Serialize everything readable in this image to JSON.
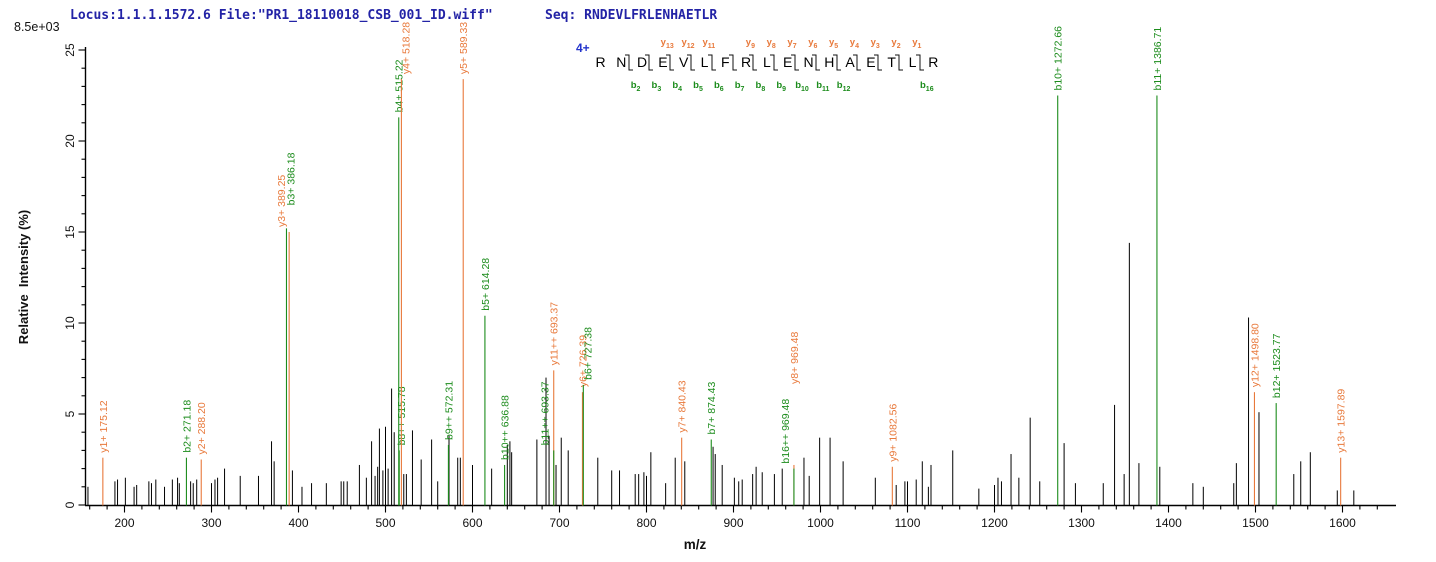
{
  "header": {
    "locus_file": "Locus:1.1.1.1572.6 File:\"PR1_18110018_CSB_001_ID.wiff\"",
    "seq_label": "Seq:",
    "seq_value": "RNDEVLFRLENHAETLR"
  },
  "axes": {
    "y_title": "Relative  Intensity (%)",
    "base_peak_intensity": "8.5e+03",
    "x_title": "m/z",
    "y_ticks_major": [
      0,
      5,
      10,
      15,
      20,
      25
    ],
    "x_ticks_major": [
      200,
      300,
      400,
      500,
      600,
      700,
      800,
      900,
      1000,
      1100,
      1200,
      1300,
      1400,
      1500,
      1600
    ],
    "x_minor_step": 20,
    "y_minor_step": 1,
    "x_range": [
      154,
      1660
    ],
    "y_range": [
      0,
      25
    ]
  },
  "sequence": {
    "charge": "4+",
    "residues": [
      "R",
      "N",
      "D",
      "E",
      "V",
      "L",
      "F",
      "R",
      "L",
      "E",
      "N",
      "H",
      "A",
      "E",
      "T",
      "L",
      "R"
    ],
    "boundaries": [
      {
        "after": 1,
        "b": "b2"
      },
      {
        "after": 2,
        "b": "b3"
      },
      {
        "after": 3,
        "y": "y13",
        "b": "b4"
      },
      {
        "after": 4,
        "y": "y12",
        "b": "b5"
      },
      {
        "after": 5,
        "y": "y11",
        "b": "b6"
      },
      {
        "after": 6,
        "b": "b7"
      },
      {
        "after": 7,
        "y": "y9",
        "b": "b8"
      },
      {
        "after": 8,
        "y": "y8",
        "b": "b9"
      },
      {
        "after": 9,
        "y": "y7",
        "b": "b10"
      },
      {
        "after": 10,
        "y": "y6",
        "b": "b11"
      },
      {
        "after": 11,
        "y": "y5",
        "b": "b12"
      },
      {
        "after": 12,
        "y": "y4"
      },
      {
        "after": 13,
        "y": "y3"
      },
      {
        "after": 14,
        "y": "y2"
      },
      {
        "after": 15,
        "y": "y1",
        "b": "b16"
      }
    ]
  },
  "chart_data": {
    "type": "bar",
    "subtype": "ms2-fragmentation-spectrum",
    "title": "",
    "xlabel": "m/z",
    "ylabel": "Relative Intensity (%)",
    "xlim": [
      154,
      1660
    ],
    "ylim": [
      0,
      25
    ],
    "base_peak_intensity": "8.5e+03",
    "labeled_peaks": [
      {
        "label": "y1+ 175.12",
        "ion": "y1+",
        "mz": 175.12,
        "pct": 2.6,
        "series": "y"
      },
      {
        "label": "b2+ 271.18",
        "ion": "b2+",
        "mz": 271.18,
        "pct": 2.6,
        "series": "b"
      },
      {
        "label": "y2+ 288.20",
        "ion": "y2+",
        "mz": 288.2,
        "pct": 2.5,
        "series": "y"
      },
      {
        "label": "b3+ 386.18",
        "ion": "b3+",
        "mz": 386.18,
        "pct": 15.2,
        "series": "b",
        "label_dx": 8,
        "label_raise": 18
      },
      {
        "label": "y3+ 389.25",
        "ion": "y3+",
        "mz": 389.25,
        "pct": 15.0,
        "series": "y",
        "label_dx": -4
      },
      {
        "label": "b4+ 515.22",
        "ion": "b4+",
        "mz": 515.22,
        "pct": 21.3,
        "series": "b"
      },
      {
        "label": "b8++ 515.78",
        "ion": "b8++",
        "mz": 515.78,
        "pct": 3.0,
        "series": "b",
        "label_dx": 6
      },
      {
        "label": "y4+ 518.28",
        "ion": "y4+",
        "mz": 518.28,
        "pct": 23.4,
        "series": "y",
        "label_dx": 8
      },
      {
        "label": "b9++ 572.31",
        "ion": "b9++",
        "mz": 572.31,
        "pct": 3.3,
        "series": "b"
      },
      {
        "label": "y5+ 589.33",
        "ion": "y5+",
        "mz": 589.33,
        "pct": 23.4,
        "series": "y"
      },
      {
        "label": "b5+ 614.28",
        "ion": "b5+",
        "mz": 614.28,
        "pct": 10.4,
        "series": "b"
      },
      {
        "label": "b10++ 636.88",
        "ion": "b10++",
        "mz": 636.88,
        "pct": 2.2,
        "series": "b"
      },
      {
        "label": "y11++ 693.37",
        "ion": "y11++",
        "mz": 693.37,
        "pct": 7.4,
        "series": "y"
      },
      {
        "label": "b11++ 693.37",
        "ion": "b11++",
        "mz": 693.37,
        "pct": 3.0,
        "series": "b",
        "label_dx": -5
      },
      {
        "label": "y6+ 726.39",
        "ion": "y6+",
        "mz": 726.39,
        "pct": 6.2,
        "series": "y"
      },
      {
        "label": "b6+ 727.38",
        "ion": "b6+",
        "mz": 727.38,
        "pct": 6.6,
        "series": "b",
        "label_dx": 8
      },
      {
        "label": "y7+ 840.43",
        "ion": "y7+",
        "mz": 840.43,
        "pct": 3.7,
        "series": "y"
      },
      {
        "label": "b7+ 874.43",
        "ion": "b7+",
        "mz": 874.43,
        "pct": 3.6,
        "series": "b"
      },
      {
        "label": "y8+ 969.48",
        "ion": "y8+",
        "mz": 969.48,
        "pct": 2.2,
        "series": "y",
        "label_raise": 76
      },
      {
        "label": "b16++ 969.48",
        "ion": "b16++",
        "mz": 969.48,
        "pct": 2.0,
        "series": "b",
        "label_dx": -5
      },
      {
        "label": "y9+ 1082.56",
        "ion": "y9+",
        "mz": 1082.56,
        "pct": 2.1,
        "series": "y"
      },
      {
        "label": "b10+ 1272.66",
        "ion": "b10+",
        "mz": 1272.66,
        "pct": 22.5,
        "series": "b"
      },
      {
        "label": "b11+ 1386.71",
        "ion": "b11+",
        "mz": 1386.71,
        "pct": 22.5,
        "series": "b"
      },
      {
        "label": "y12+ 1498.80",
        "ion": "y12+",
        "mz": 1498.8,
        "pct": 6.2,
        "series": "y"
      },
      {
        "label": "b12+ 1523.77",
        "ion": "b12+",
        "mz": 1523.77,
        "pct": 5.6,
        "series": "b"
      },
      {
        "label": "y13+ 1597.89",
        "ion": "y13+",
        "mz": 1597.89,
        "pct": 2.6,
        "series": "y"
      }
    ],
    "unlabeled_peaks": [
      [
        158,
        1.0
      ],
      [
        189,
        1.3
      ],
      [
        192,
        1.4
      ],
      [
        201,
        1.5
      ],
      [
        211,
        1.0
      ],
      [
        214,
        1.1
      ],
      [
        228,
        1.3
      ],
      [
        231,
        1.2
      ],
      [
        236,
        1.4
      ],
      [
        246,
        1.0
      ],
      [
        255,
        1.4
      ],
      [
        261,
        1.5
      ],
      [
        263,
        1.2
      ],
      [
        276,
        1.3
      ],
      [
        279,
        1.2
      ],
      [
        283,
        1.4
      ],
      [
        300,
        1.2
      ],
      [
        304,
        1.4
      ],
      [
        307,
        1.5
      ],
      [
        315,
        2.0
      ],
      [
        333,
        1.6
      ],
      [
        354,
        1.6
      ],
      [
        369,
        3.5
      ],
      [
        372,
        2.4
      ],
      [
        393,
        1.9
      ],
      [
        404,
        1.0
      ],
      [
        415,
        1.2
      ],
      [
        432,
        1.2
      ],
      [
        449,
        1.3
      ],
      [
        452,
        1.3
      ],
      [
        456,
        1.3
      ],
      [
        470,
        2.2
      ],
      [
        478,
        1.5
      ],
      [
        484,
        3.5
      ],
      [
        488,
        1.6
      ],
      [
        491,
        2.1
      ],
      [
        493,
        4.2
      ],
      [
        497,
        1.9
      ],
      [
        500,
        4.3
      ],
      [
        503,
        2.0
      ],
      [
        507,
        6.4
      ],
      [
        510,
        4.0
      ],
      [
        521,
        1.7
      ],
      [
        524,
        1.7
      ],
      [
        531,
        4.1
      ],
      [
        541,
        2.5
      ],
      [
        553,
        3.6
      ],
      [
        560,
        1.3
      ],
      [
        573,
        3.8
      ],
      [
        583,
        2.6
      ],
      [
        586,
        2.6
      ],
      [
        600,
        2.2
      ],
      [
        622,
        2.0
      ],
      [
        640,
        3.3
      ],
      [
        643,
        3.5
      ],
      [
        645,
        2.9
      ],
      [
        674,
        3.6
      ],
      [
        684.5,
        7.0
      ],
      [
        688,
        3.8
      ],
      [
        696,
        2.2
      ],
      [
        702,
        3.7
      ],
      [
        710,
        3.0
      ],
      [
        744,
        2.6
      ],
      [
        760,
        1.9
      ],
      [
        769,
        1.9
      ],
      [
        787,
        1.7
      ],
      [
        791,
        1.7
      ],
      [
        797,
        1.8
      ],
      [
        800,
        1.6
      ],
      [
        805,
        2.9
      ],
      [
        822,
        1.2
      ],
      [
        833,
        2.6
      ],
      [
        844,
        2.4
      ],
      [
        876.5,
        3.2
      ],
      [
        879,
        2.8
      ],
      [
        887,
        2.2
      ],
      [
        901,
        1.5
      ],
      [
        906,
        1.3
      ],
      [
        910,
        1.4
      ],
      [
        922,
        1.7
      ],
      [
        926,
        2.1
      ],
      [
        933,
        1.8
      ],
      [
        947,
        1.7
      ],
      [
        956,
        2.0
      ],
      [
        981,
        2.6
      ],
      [
        987,
        1.6
      ],
      [
        999,
        3.7
      ],
      [
        1011,
        3.7
      ],
      [
        1026,
        2.4
      ],
      [
        1063,
        1.5
      ],
      [
        1087,
        1.1
      ],
      [
        1097,
        1.3
      ],
      [
        1100,
        1.3
      ],
      [
        1110,
        1.4
      ],
      [
        1117,
        2.4
      ],
      [
        1124,
        1.0
      ],
      [
        1127,
        2.2
      ],
      [
        1152,
        3.0
      ],
      [
        1182,
        0.9
      ],
      [
        1200,
        1.1
      ],
      [
        1204,
        1.5
      ],
      [
        1208,
        1.3
      ],
      [
        1219,
        2.8
      ],
      [
        1228,
        1.5
      ],
      [
        1241,
        4.8
      ],
      [
        1252,
        1.3
      ],
      [
        1280,
        3.4
      ],
      [
        1293,
        1.2
      ],
      [
        1325,
        1.2
      ],
      [
        1338,
        5.5
      ],
      [
        1349,
        1.7
      ],
      [
        1355,
        14.4
      ],
      [
        1366,
        2.3
      ],
      [
        1390,
        2.1
      ],
      [
        1428,
        1.2
      ],
      [
        1440,
        1.0
      ],
      [
        1475,
        1.2
      ],
      [
        1478,
        2.3
      ],
      [
        1492,
        10.3
      ],
      [
        1504,
        5.1
      ],
      [
        1544,
        1.7
      ],
      [
        1552,
        2.4
      ],
      [
        1563,
        2.9
      ],
      [
        1594,
        0.8
      ],
      [
        1613,
        0.8
      ]
    ],
    "legend": "orange = y-ions, green = b-ions, black = unassigned"
  },
  "colors": {
    "y_ion": "#E8793B",
    "b_ion": "#1C8C1C",
    "peak_black": "#000000",
    "header_navy": "#2323A6",
    "charge_blue": "#2233CC",
    "axis": "#000000"
  }
}
